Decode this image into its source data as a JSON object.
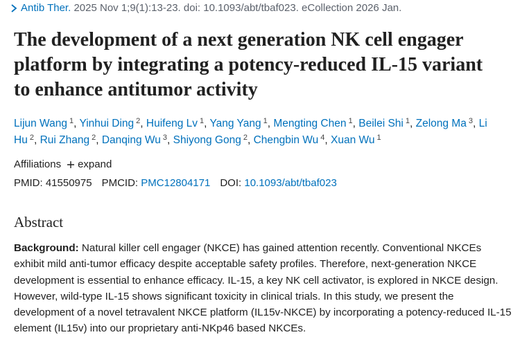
{
  "citation": {
    "journal": "Antib Ther.",
    "details": "2025 Nov 1;9(1):13-23. doi: 10.1093/abt/tbaf023. eCollection 2026 Jan."
  },
  "title": "The development of a next generation NK cell engager platform by integrating a potency-reduced IL-15 variant to enhance antitumor activity",
  "separator": ",",
  "authors": [
    {
      "name": "Lijun Wang",
      "affiliation": 1
    },
    {
      "name": "Yinhui Ding",
      "affiliation": 2
    },
    {
      "name": "Huifeng Lv",
      "affiliation": 1
    },
    {
      "name": "Yang Yang",
      "affiliation": 1
    },
    {
      "name": "Mengting Chen",
      "affiliation": 1
    },
    {
      "name": "Beilei Shi",
      "affiliation": 1
    },
    {
      "name": "Zelong Ma",
      "affiliation": 3
    },
    {
      "name": "Li Hu",
      "affiliation": 2
    },
    {
      "name": "Rui Zhang",
      "affiliation": 2
    },
    {
      "name": "Danqing Wu",
      "affiliation": 3
    },
    {
      "name": "Shiyong Gong",
      "affiliation": 2
    },
    {
      "name": "Chengbin Wu",
      "affiliation": 4
    },
    {
      "name": "Xuan Wu",
      "affiliation": 1
    }
  ],
  "affiliations": {
    "label": "Affiliations",
    "action": "expand"
  },
  "identifiers": [
    {
      "label": "PMID:",
      "value": "41550975"
    },
    {
      "label": "PMCID:",
      "value": "PMC12804171"
    },
    {
      "label": "DOI:",
      "value": "10.1093/abt/tbaf023"
    }
  ],
  "abstract": {
    "heading": "Abstract",
    "sections": [
      {
        "label": "Background:",
        "text": "Natural killer cell engager (NKCE) has gained attention recently. Conventional NKCEs exhibit mild anti-tumor efficacy despite acceptable safety profiles. Therefore, next-generation NKCE development is essential to enhance efficacy. IL-15, a key NK cell activator, is explored in NKCE design. However, wild-type IL-15 shows significant toxicity in clinical trials. In this study, we present the development of a novel tetravalent NKCE platform (IL15v-NKCE) by incorporating a potency-reduced IL-15 element (IL15v) into our proprietary anti-NKp46 based NKCEs."
      }
    ]
  }
}
